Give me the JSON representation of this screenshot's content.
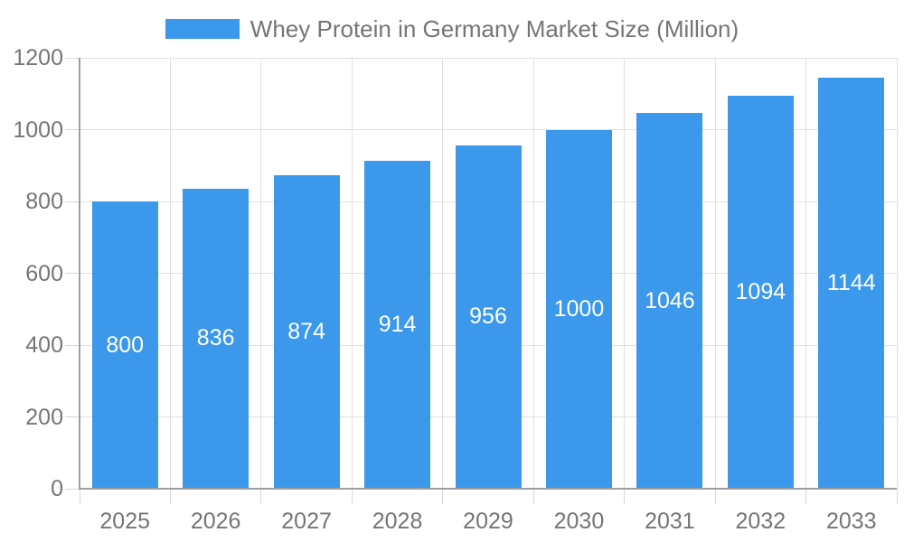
{
  "legend": {
    "label": "Whey Protein in Germany Market Size (Million)",
    "swatch_color": "#3b98eb"
  },
  "chart_data": {
    "type": "bar",
    "title": "Whey Protein in Germany Market Size (Million)",
    "categories": [
      "2025",
      "2026",
      "2027",
      "2028",
      "2029",
      "2030",
      "2031",
      "2032",
      "2033"
    ],
    "series": [
      {
        "name": "Whey Protein in Germany Market Size (Million)",
        "values": [
          800,
          836,
          874,
          914,
          956,
          1000,
          1046,
          1094,
          1144
        ]
      }
    ],
    "xlabel": "",
    "ylabel": "",
    "ylim": [
      0,
      1200
    ],
    "yticks": [
      0,
      200,
      400,
      600,
      800,
      1000,
      1200
    ],
    "grid": true,
    "legend_position": "top",
    "value_labels_shown": true,
    "value_label_position": "center-of-bar",
    "colors": {
      "bar": "#3b98eb",
      "value_label": "#ffffff",
      "axis_text": "#757575",
      "gridline": "#e0e0e0",
      "tick": "#d6d6d6",
      "axis_line": "#9e9e9e",
      "background": "#ffffff"
    }
  }
}
